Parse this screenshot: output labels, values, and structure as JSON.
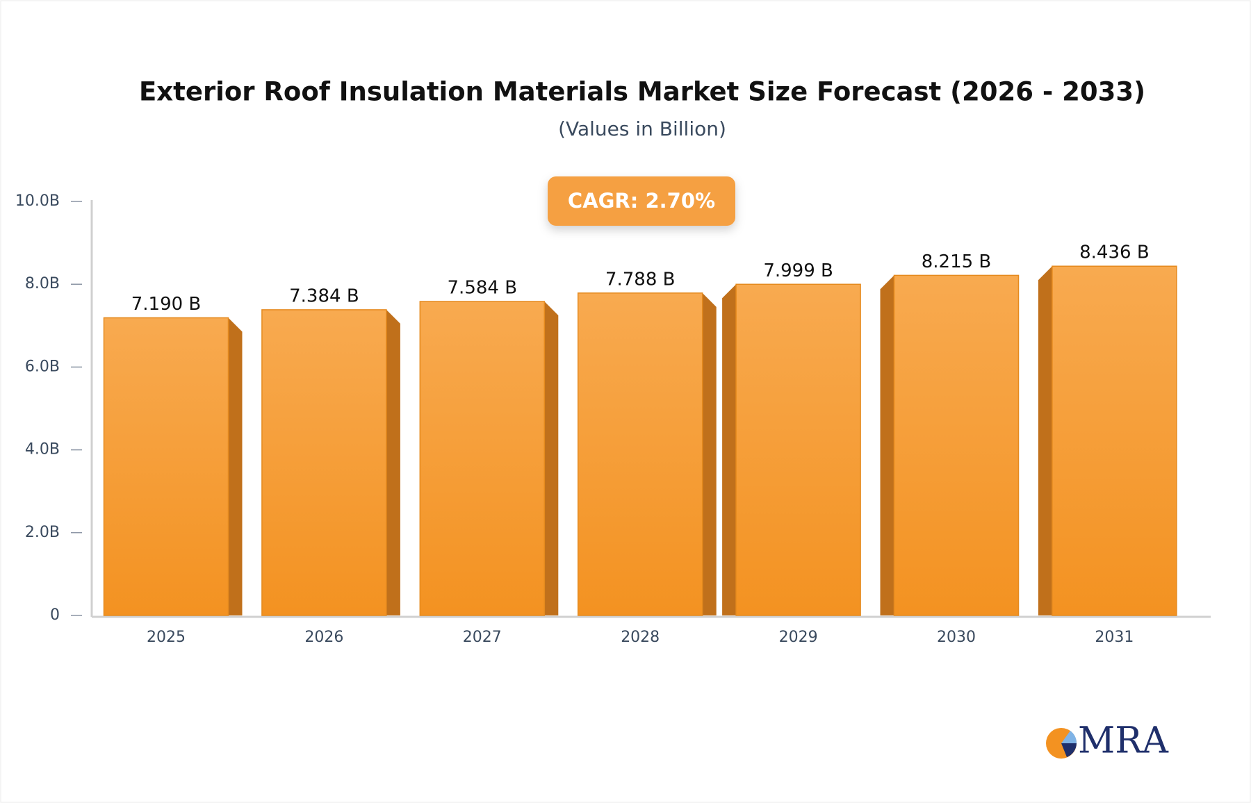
{
  "chart_data": {
    "type": "bar",
    "title": "Exterior Roof Insulation Materials Market Size Forecast (2026 - 2033)",
    "subtitle": "(Values in Billion)",
    "annotation": "CAGR: 2.70%",
    "categories": [
      "2025",
      "2026",
      "2027",
      "2028",
      "2029",
      "2030",
      "2031"
    ],
    "values": [
      7.19,
      7.384,
      7.584,
      7.788,
      7.999,
      8.215,
      8.436
    ],
    "value_labels": [
      "7.190 B",
      "7.384 B",
      "7.584 B",
      "7.788 B",
      "7.999 B",
      "8.215 B",
      "8.436 B"
    ],
    "color": "#f5a03e",
    "ylim": [
      0,
      10
    ],
    "yticks": [
      0,
      {
        "value": 2,
        "label": "2.0B"
      },
      {
        "value": 4,
        "label": "4.0B"
      },
      {
        "value": 6,
        "label": "6.0B"
      },
      {
        "value": 8,
        "label": "8.0B"
      },
      {
        "value": 10,
        "label": "10.0B"
      }
    ],
    "grid": false
  },
  "brand": {
    "name": "MRA"
  }
}
